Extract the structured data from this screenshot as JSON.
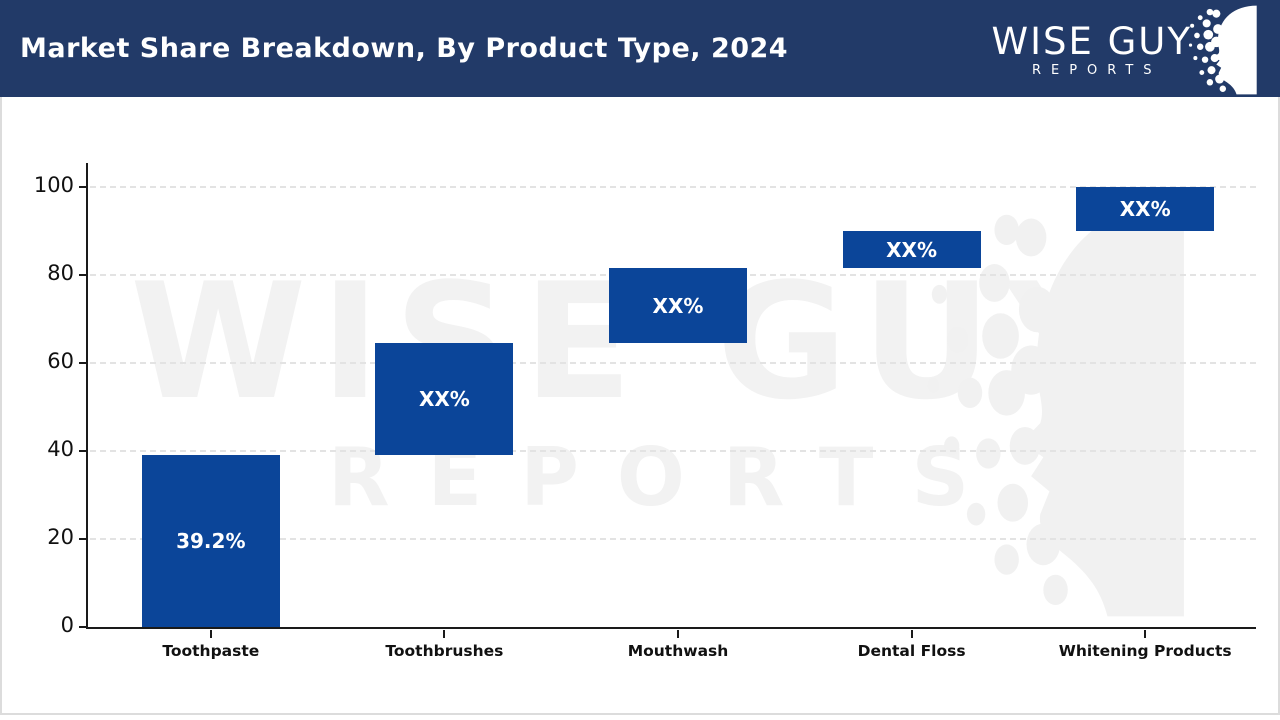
{
  "header": {
    "title": "Market Share Breakdown, By Product Type, 2024",
    "logo": {
      "line1": "WISE GUY",
      "line2": "REPORTS"
    }
  },
  "watermark": {
    "line1": "WISE GUY",
    "line2": "REPORTS"
  },
  "colors": {
    "header_bg": "#223a68",
    "bar": "#0b4599",
    "gridline": "#e3e3e3",
    "axis": "#1a1a1a",
    "watermark": "#f2f2f2"
  },
  "chart_data": {
    "type": "bar",
    "variant": "waterfall",
    "title": "Market Share Breakdown, By Product Type, 2024",
    "xlabel": "",
    "ylabel": "",
    "grid": "horizontal-dashed",
    "legend": "none",
    "ylim": [
      0,
      105
    ],
    "yticks": [
      0,
      20,
      40,
      60,
      80,
      100
    ],
    "categories": [
      "Toothpaste",
      "Toothbrushes",
      "Mouthwash",
      "Dental Floss",
      "Whitening Products"
    ],
    "segments": [
      {
        "category": "Toothpaste",
        "start": 0,
        "end": 39.2,
        "label": "39.2%"
      },
      {
        "category": "Toothbrushes",
        "start": 39.2,
        "end": 64.5,
        "label": "XX%"
      },
      {
        "category": "Mouthwash",
        "start": 64.5,
        "end": 81.5,
        "label": "XX%"
      },
      {
        "category": "Dental Floss",
        "start": 81.5,
        "end": 90,
        "label": "XX%"
      },
      {
        "category": "Whitening Products",
        "start": 90,
        "end": 100,
        "label": "XX%"
      }
    ],
    "bar_color": "#0b4599"
  }
}
